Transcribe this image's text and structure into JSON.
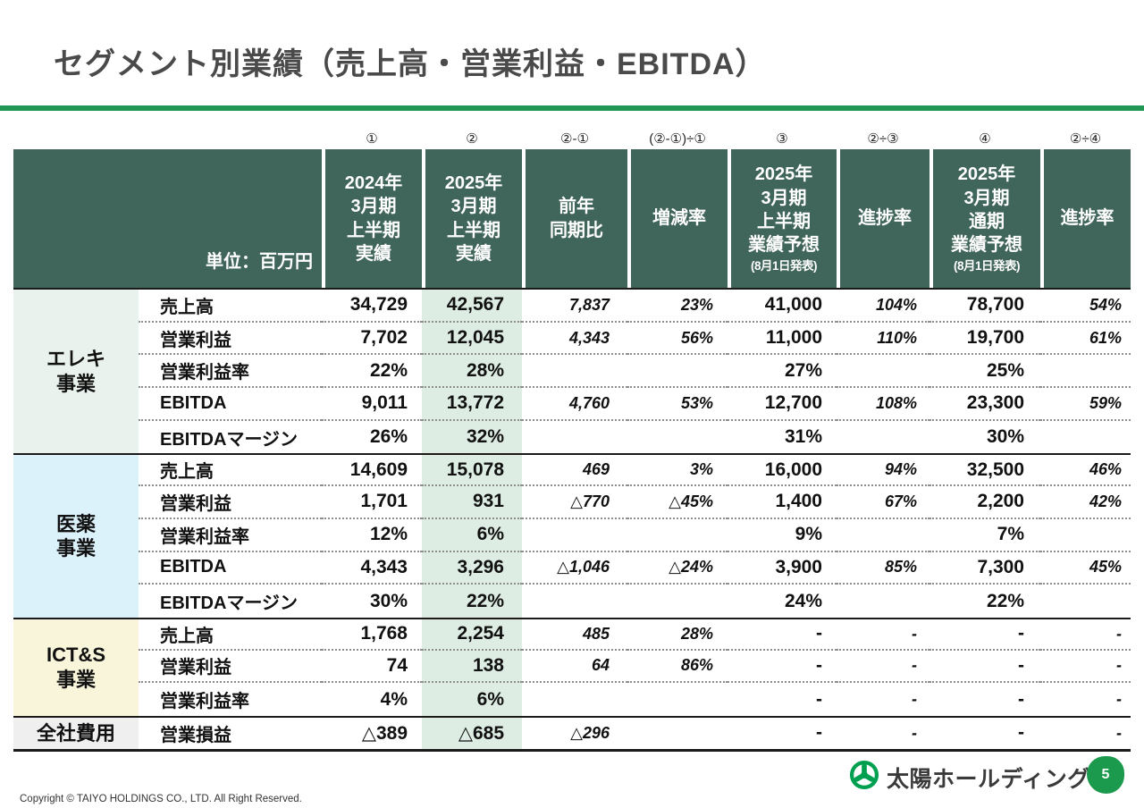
{
  "title": "セグメント別業績（売上高・営業利益・EBITDA）",
  "colors": {
    "accent_green": "#1f9652",
    "header_green": "#40655a",
    "col2_highlight": "#ddede4",
    "seg_eleki_bg": "#e9f2ec",
    "seg_iyaku_bg": "#dcf2fb",
    "seg_ict_bg": "#f8f5db",
    "seg_zensha_bg": "#efefef",
    "logo_green": "#00a050",
    "badge_green": "#1b9a4e"
  },
  "table": {
    "unit_label": "単位：百万円",
    "formula_symbols": [
      "①",
      "②",
      "②-①",
      "(②-①)÷①",
      "③",
      "②÷③",
      "④",
      "②÷④"
    ],
    "column_headers": [
      {
        "lines": [
          "2024年",
          "3月期",
          "上半期",
          "実績"
        ],
        "note": ""
      },
      {
        "lines": [
          "2025年",
          "3月期",
          "上半期",
          "実績"
        ],
        "note": ""
      },
      {
        "lines": [
          "前年",
          "同期比"
        ],
        "note": ""
      },
      {
        "lines": [
          "増減率"
        ],
        "note": ""
      },
      {
        "lines": [
          "2025年",
          "3月期",
          "上半期",
          "業績予想"
        ],
        "note": "(8月1日発表)"
      },
      {
        "lines": [
          "進捗率"
        ],
        "note": ""
      },
      {
        "lines": [
          "2025年",
          "3月期",
          "通期",
          "業績予想"
        ],
        "note": "(8月1日発表)"
      },
      {
        "lines": [
          "進捗率"
        ],
        "note": ""
      }
    ],
    "segments": [
      {
        "name_lines": [
          "エレキ",
          "事業"
        ],
        "bg": "#e9f2ec",
        "rows": [
          {
            "label": "売上高",
            "values": [
              "34,729",
              "42,567",
              "7,837",
              "23%",
              "41,000",
              "104%",
              "78,700",
              "54%"
            ]
          },
          {
            "label": "営業利益",
            "values": [
              "7,702",
              "12,045",
              "4,343",
              "56%",
              "11,000",
              "110%",
              "19,700",
              "61%"
            ]
          },
          {
            "label": "営業利益率",
            "values": [
              "22%",
              "28%",
              "",
              "",
              "27%",
              "",
              "25%",
              ""
            ]
          },
          {
            "label": "EBITDA",
            "values": [
              "9,011",
              "13,772",
              "4,760",
              "53%",
              "12,700",
              "108%",
              "23,300",
              "59%"
            ]
          },
          {
            "label": "EBITDAマージン",
            "values": [
              "26%",
              "32%",
              "",
              "",
              "31%",
              "",
              "30%",
              ""
            ]
          }
        ]
      },
      {
        "name_lines": [
          "医薬",
          "事業"
        ],
        "bg": "#dcf2fb",
        "rows": [
          {
            "label": "売上高",
            "values": [
              "14,609",
              "15,078",
              "469",
              "3%",
              "16,000",
              "94%",
              "32,500",
              "46%"
            ]
          },
          {
            "label": "営業利益",
            "values": [
              "1,701",
              "931",
              "△770",
              "△45%",
              "1,400",
              "67%",
              "2,200",
              "42%"
            ]
          },
          {
            "label": "営業利益率",
            "values": [
              "12%",
              "6%",
              "",
              "",
              "9%",
              "",
              "7%",
              ""
            ]
          },
          {
            "label": "EBITDA",
            "values": [
              "4,343",
              "3,296",
              "△1,046",
              "△24%",
              "3,900",
              "85%",
              "7,300",
              "45%"
            ]
          },
          {
            "label": "EBITDAマージン",
            "values": [
              "30%",
              "22%",
              "",
              "",
              "24%",
              "",
              "22%",
              ""
            ]
          }
        ]
      },
      {
        "name_lines": [
          "ICT&S",
          "事業"
        ],
        "bg": "#f8f5db",
        "rows": [
          {
            "label": "売上高",
            "values": [
              "1,768",
              "2,254",
              "485",
              "28%",
              "-",
              "-",
              "-",
              "-"
            ]
          },
          {
            "label": "営業利益",
            "values": [
              "74",
              "138",
              "64",
              "86%",
              "-",
              "-",
              "-",
              "-"
            ]
          },
          {
            "label": "営業利益率",
            "values": [
              "4%",
              "6%",
              "",
              "",
              "-",
              "-",
              "-",
              "-"
            ]
          }
        ]
      },
      {
        "name_lines": [
          "全社費用"
        ],
        "bg": "#efefef",
        "rows": [
          {
            "label": "営業損益",
            "values": [
              "△389",
              "△685",
              "△296",
              "",
              "-",
              "-",
              "-",
              "-"
            ]
          }
        ]
      }
    ]
  },
  "footer": {
    "copyright": "Copyright © TAIYO HOLDINGS CO., LTD.  All Right Reserved.",
    "logo_text": "太陽ホールディングス",
    "page_number": "5"
  }
}
